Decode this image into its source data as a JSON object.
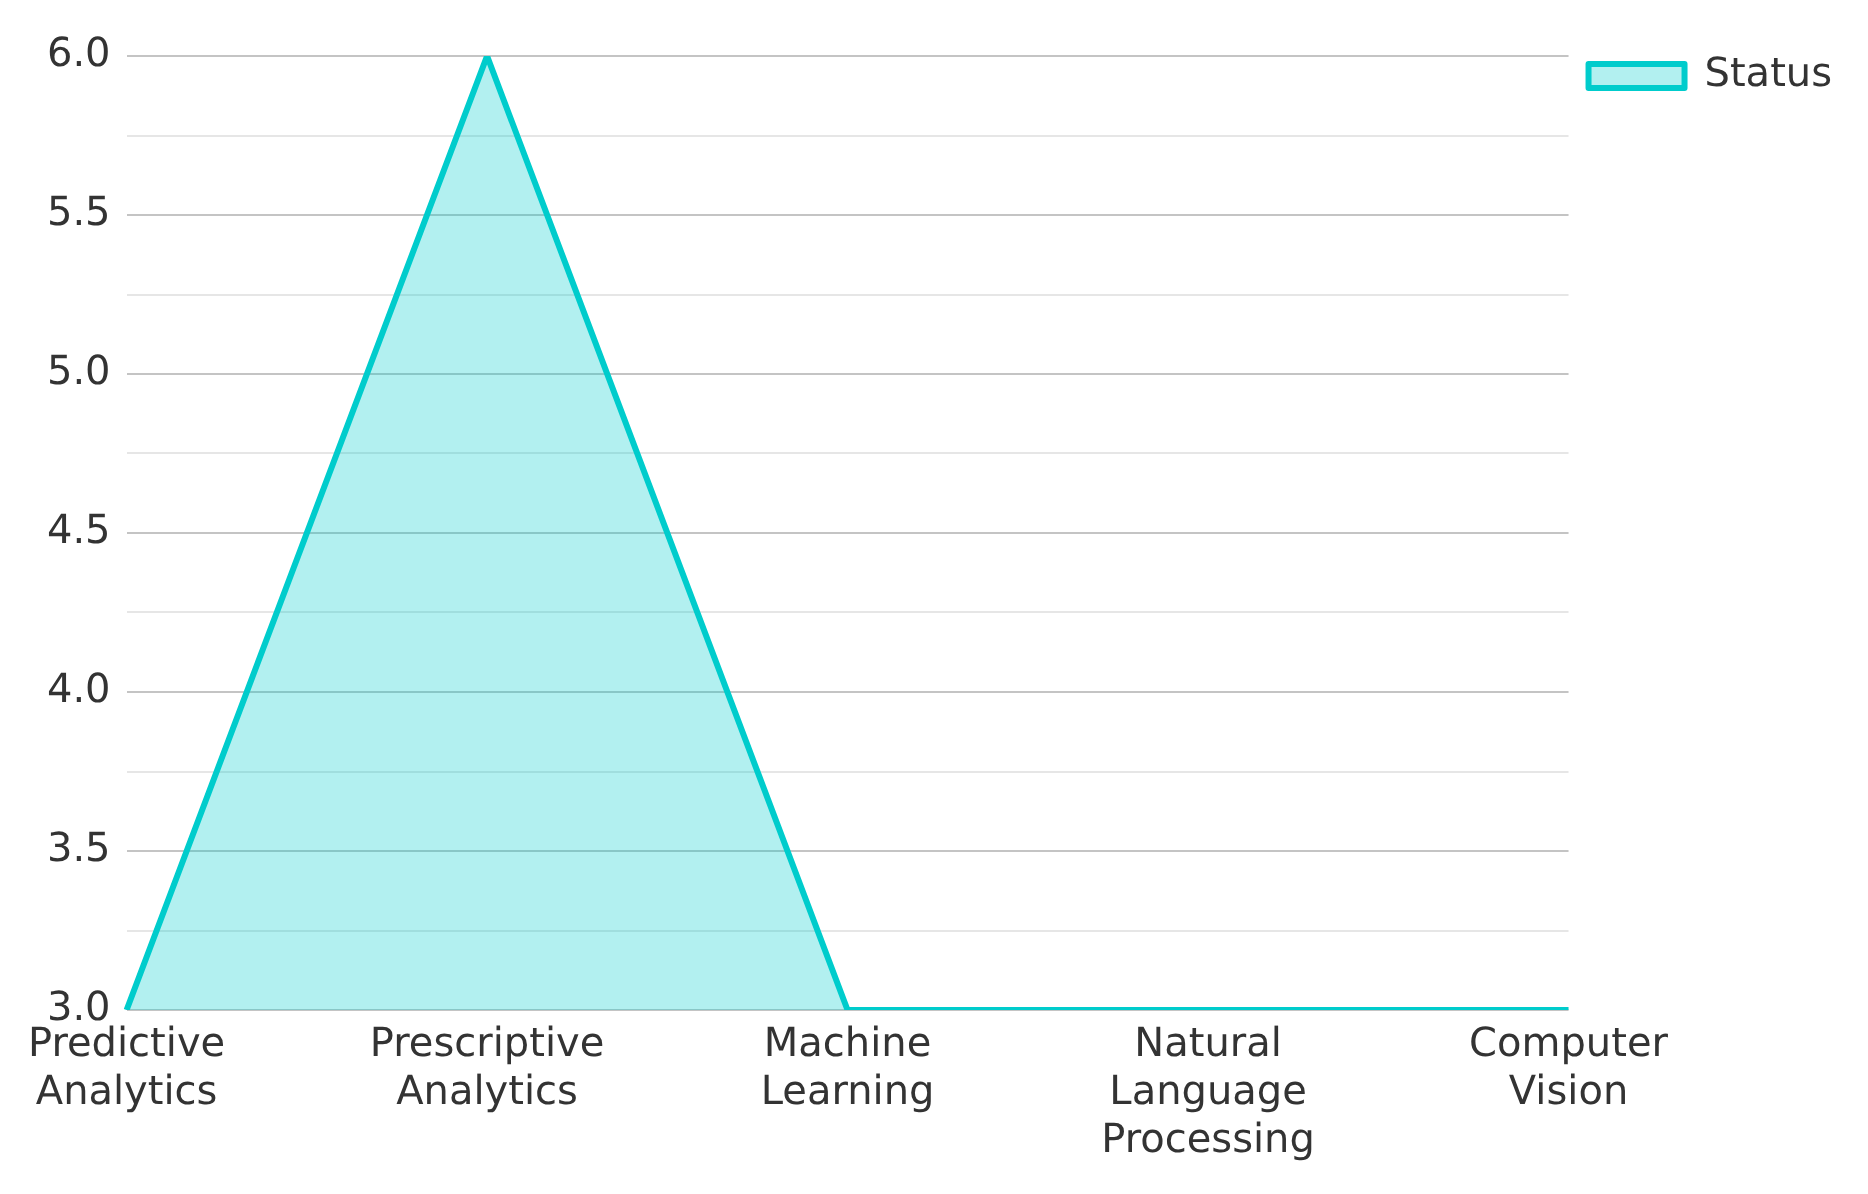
{
  "chart_data": {
    "type": "area",
    "categories": [
      "Predictive Analytics",
      "Prescriptive Analytics",
      "Machine Learning",
      "Natural Language Processing",
      "Computer Vision"
    ],
    "series": [
      {
        "name": "Status",
        "color": "#00cccc",
        "values": [
          3,
          6,
          3,
          3,
          3
        ]
      }
    ],
    "ylim": [
      3,
      6
    ],
    "yticks": [
      {
        "value": 3,
        "label": "3.0"
      },
      {
        "value": 3.25,
        "label": null
      },
      {
        "value": 3.5,
        "label": "3.5"
      },
      {
        "value": 3.75,
        "label": null
      },
      {
        "value": 4,
        "label": "4.0"
      },
      {
        "value": 4.25,
        "label": null
      },
      {
        "value": 4.5,
        "label": "4.5"
      },
      {
        "value": 4.75,
        "label": null
      },
      {
        "value": 5,
        "label": "5.0"
      },
      {
        "value": 5.25,
        "label": null
      },
      {
        "value": 5.5,
        "label": "5.5"
      },
      {
        "value": 5.75,
        "label": null
      },
      {
        "value": 6,
        "label": "6.0"
      }
    ],
    "grid": "y",
    "legend": "top right"
  }
}
